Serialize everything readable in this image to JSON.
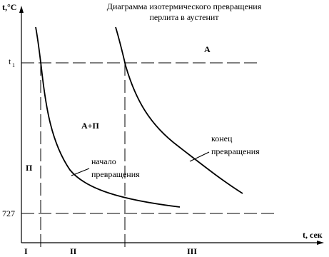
{
  "title": [
    "Диаграмма изотермического превращения",
    "перлита в аустенит"
  ],
  "y_axis_label": "t,°C",
  "x_axis_label": "t, сек",
  "levels": [
    {
      "label": "t",
      "subscript": "1"
    },
    {
      "label": "727"
    }
  ],
  "regions": [
    "A",
    "A+П",
    "П"
  ],
  "curves": [
    {
      "label": [
        "начало",
        "превращения"
      ]
    },
    {
      "label": [
        "конец",
        "превращения"
      ]
    }
  ],
  "stages": [
    "I",
    "II",
    "III"
  ]
}
